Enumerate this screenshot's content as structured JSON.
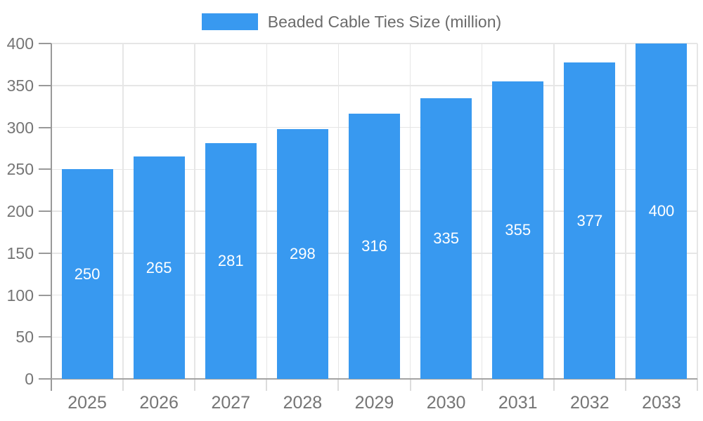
{
  "legend": {
    "label": "Beaded Cable Ties Size (million)"
  },
  "chart_data": {
    "type": "bar",
    "title": "",
    "categories": [
      "2025",
      "2026",
      "2027",
      "2028",
      "2029",
      "2030",
      "2031",
      "2032",
      "2033"
    ],
    "values": [
      250,
      265,
      281,
      298,
      316,
      335,
      355,
      377,
      400
    ],
    "series": [
      {
        "name": "Beaded Cable Ties Size (million)",
        "values": [
          250,
          265,
          281,
          298,
          316,
          335,
          355,
          377,
          400
        ]
      }
    ],
    "xlabel": "",
    "ylabel": "",
    "ylim": [
      0,
      400
    ],
    "yticks": [
      0,
      50,
      100,
      150,
      200,
      250,
      300,
      350,
      400
    ],
    "grid": true,
    "legend_position": "top",
    "data_labels": true
  },
  "style": {
    "bar_color": "#3899F0",
    "grid_color": "#E6E6E6",
    "x_axis_color": "#A3A3A3",
    "y_axis_color": "#999999",
    "x_tick_color": "#DCDCDC",
    "tick_label_color": "#757575",
    "legend_text_color": "#6B6B6B",
    "data_label_color": "#FFFFFF",
    "background": "#FFFFFF"
  }
}
